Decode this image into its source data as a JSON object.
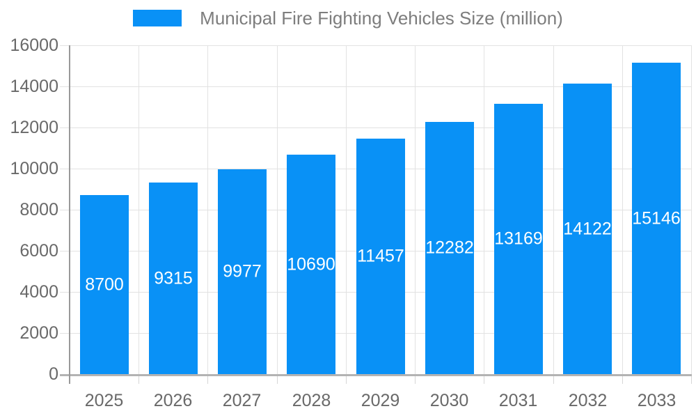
{
  "chart_data": {
    "type": "bar",
    "title": "",
    "xlabel": "",
    "ylabel": "",
    "categories": [
      "2025",
      "2026",
      "2027",
      "2028",
      "2029",
      "2030",
      "2031",
      "2032",
      "2033"
    ],
    "series": [
      {
        "name": "Municipal Fire Fighting Vehicles Size (million)",
        "values": [
          8700,
          9315,
          9977,
          10690,
          11457,
          12282,
          13169,
          14122,
          15146
        ]
      }
    ],
    "yticks": [
      0,
      2000,
      4000,
      6000,
      8000,
      10000,
      12000,
      14000,
      16000
    ],
    "ylim": [
      0,
      16000
    ],
    "grid": true,
    "legend_position": "top-center",
    "value_labels": "inside-center",
    "colors": {
      "bar": "#0991f6",
      "grid": "#e2e2e2",
      "tick": "#d6d6d6",
      "x_axis": "#b3b3b3",
      "y_axis": "#999999",
      "axis_text": "#696969",
      "legend_text": "#7d7d7d",
      "value_text": "#ffffff",
      "background": "#ffffff"
    }
  }
}
